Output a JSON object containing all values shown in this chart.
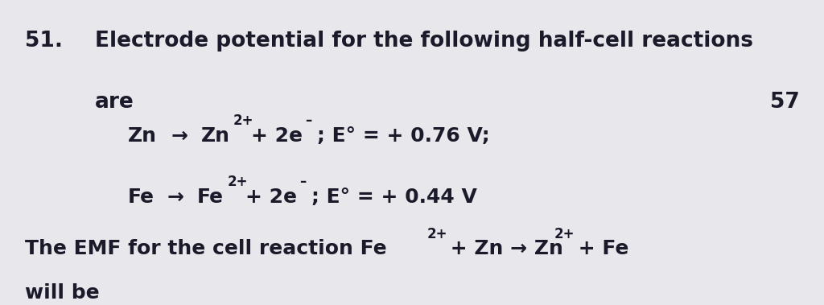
{
  "background_color": "#e8e8ec",
  "text_color": "#1a1a2a",
  "question_number": "51.",
  "title_line1": "Electrode potential for the following half-cell reactions",
  "title_line2": "are",
  "page_number": "57",
  "figsize": [
    10.24,
    3.79
  ],
  "dpi": 100,
  "font_size_main": 19,
  "font_size_body": 18,
  "font_size_super": 12
}
